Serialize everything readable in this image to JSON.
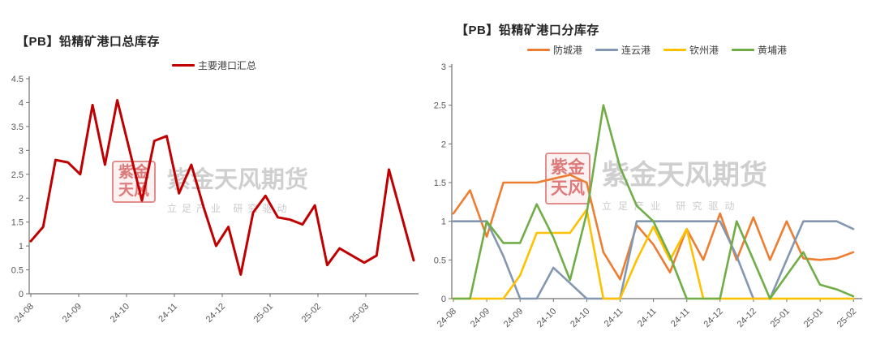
{
  "chart_data": [
    {
      "type": "line",
      "title": "【PB】铅精矿港口总库存",
      "ylim": [
        0,
        4.5
      ],
      "ytick_step": 0.5,
      "yticklabels": [
        "0",
        "0.5",
        "1",
        "1.5",
        "2",
        "2.5",
        "3",
        "3.5",
        "4",
        "4.5"
      ],
      "xlabels": [
        "24-08",
        "24-09",
        "24-10",
        "24-11",
        "24-12",
        "25-01",
        "25-02",
        "25-03"
      ],
      "grid": false,
      "legend_position": "top",
      "series": [
        {
          "name": "主要港口汇总",
          "color": "#C00000",
          "values": [
            1.1,
            1.4,
            2.8,
            2.75,
            2.5,
            3.95,
            2.7,
            4.05,
            3.0,
            1.95,
            3.2,
            3.3,
            2.1,
            2.7,
            1.8,
            1.0,
            1.4,
            0.4,
            1.7,
            2.05,
            1.6,
            1.55,
            1.45,
            1.85,
            0.6,
            0.95,
            0.8,
            0.65,
            0.8,
            2.6,
            1.65,
            0.7
          ]
        }
      ]
    },
    {
      "type": "line",
      "title": "【PB】铅精矿港口分库存",
      "ylim": [
        0,
        3
      ],
      "ytick_step": 0.5,
      "yticklabels": [
        "0",
        "0.5",
        "1",
        "1.5",
        "2",
        "2.5",
        "3"
      ],
      "xlabels": [
        "24-08",
        "24-09",
        "24-09",
        "24-10",
        "24-10",
        "24-11",
        "24-11",
        "24-11",
        "24-12",
        "24-12",
        "25-01",
        "25-01",
        "25-02"
      ],
      "grid": false,
      "legend_position": "top",
      "series": [
        {
          "name": "防城港",
          "color": "#ED7D31",
          "values": [
            1.1,
            1.4,
            0.8,
            1.5,
            1.5,
            1.5,
            1.55,
            1.6,
            1.5,
            0.6,
            0.25,
            0.95,
            0.7,
            0.34,
            0.9,
            0.5,
            1.1,
            0.5,
            1.05,
            0.5,
            1.0,
            0.52,
            0.5,
            0.52,
            0.6
          ]
        },
        {
          "name": "连云港",
          "color": "#8497B0",
          "values": [
            1.0,
            1.0,
            1.0,
            0.55,
            0,
            0,
            0.4,
            0.2,
            0,
            0,
            0,
            1.0,
            1.0,
            1.0,
            1.0,
            1.0,
            1.0,
            0.55,
            0,
            0,
            0.5,
            1.0,
            1.0,
            1.0,
            0.9
          ]
        },
        {
          "name": "钦州港",
          "color": "#FFC000",
          "values": [
            0,
            0,
            0,
            0,
            0.3,
            0.85,
            0.85,
            0.85,
            1.15,
            0,
            0,
            0.5,
            0.93,
            0.5,
            0.9,
            0,
            0,
            0,
            0,
            0,
            0,
            0,
            0,
            0,
            0
          ]
        },
        {
          "name": "黄埔港",
          "color": "#70AD47",
          "values": [
            0,
            0,
            1.0,
            0.72,
            0.72,
            1.22,
            0.79,
            0.24,
            1.1,
            2.5,
            1.7,
            1.2,
            1.0,
            0.55,
            0,
            0,
            0,
            1.0,
            0.5,
            0,
            0.3,
            0.6,
            0.18,
            0.12,
            0.03
          ]
        }
      ]
    }
  ],
  "watermark": {
    "seal_text": "紫金天风",
    "brand": "紫金天风期货",
    "slogan": "立足产业 研究驱动"
  },
  "style": {
    "axis_color": "#6f6f6f",
    "tick_text_color": "#595959"
  }
}
